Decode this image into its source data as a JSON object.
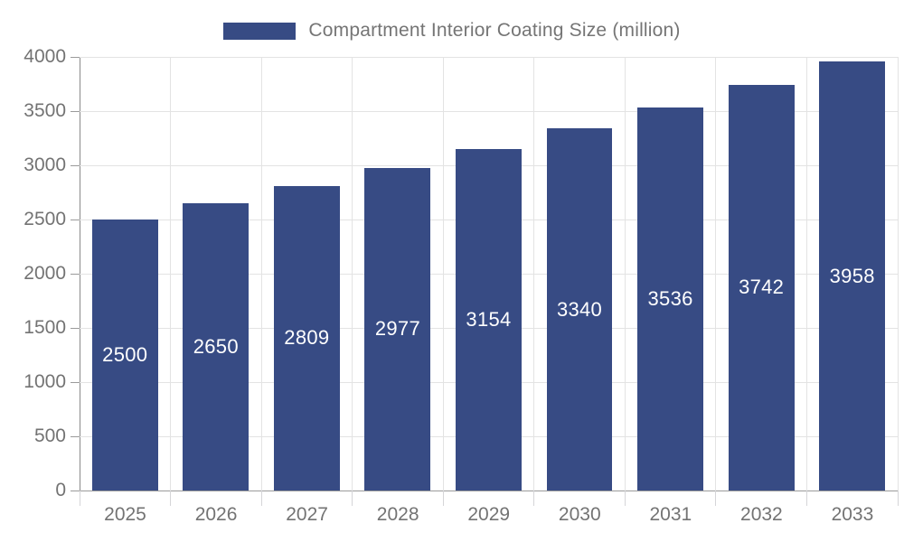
{
  "chart_data": {
    "type": "bar",
    "title": "",
    "legend": "Compartment Interior Coating Size (million)",
    "legend_position": "top",
    "categories": [
      "2025",
      "2026",
      "2027",
      "2028",
      "2029",
      "2030",
      "2031",
      "2032",
      "2033"
    ],
    "values": [
      2500,
      2650,
      2809,
      2977,
      3154,
      3340,
      3536,
      3742,
      3958
    ],
    "xlabel": "",
    "ylabel": "",
    "ylim": [
      0,
      4000
    ],
    "ytick_step": 500,
    "ytick_labels": [
      "0",
      "500",
      "1000",
      "1500",
      "2000",
      "2500",
      "3000",
      "3500",
      "4000"
    ],
    "grid": true,
    "value_labels_visible": true
  },
  "colors": {
    "bar": "#374b84",
    "bar_label": "#ffffff",
    "axis_text": "#737373",
    "grid_line": "#e3e3e3",
    "axis_line": "#8a8a8a",
    "background": "#ffffff"
  }
}
